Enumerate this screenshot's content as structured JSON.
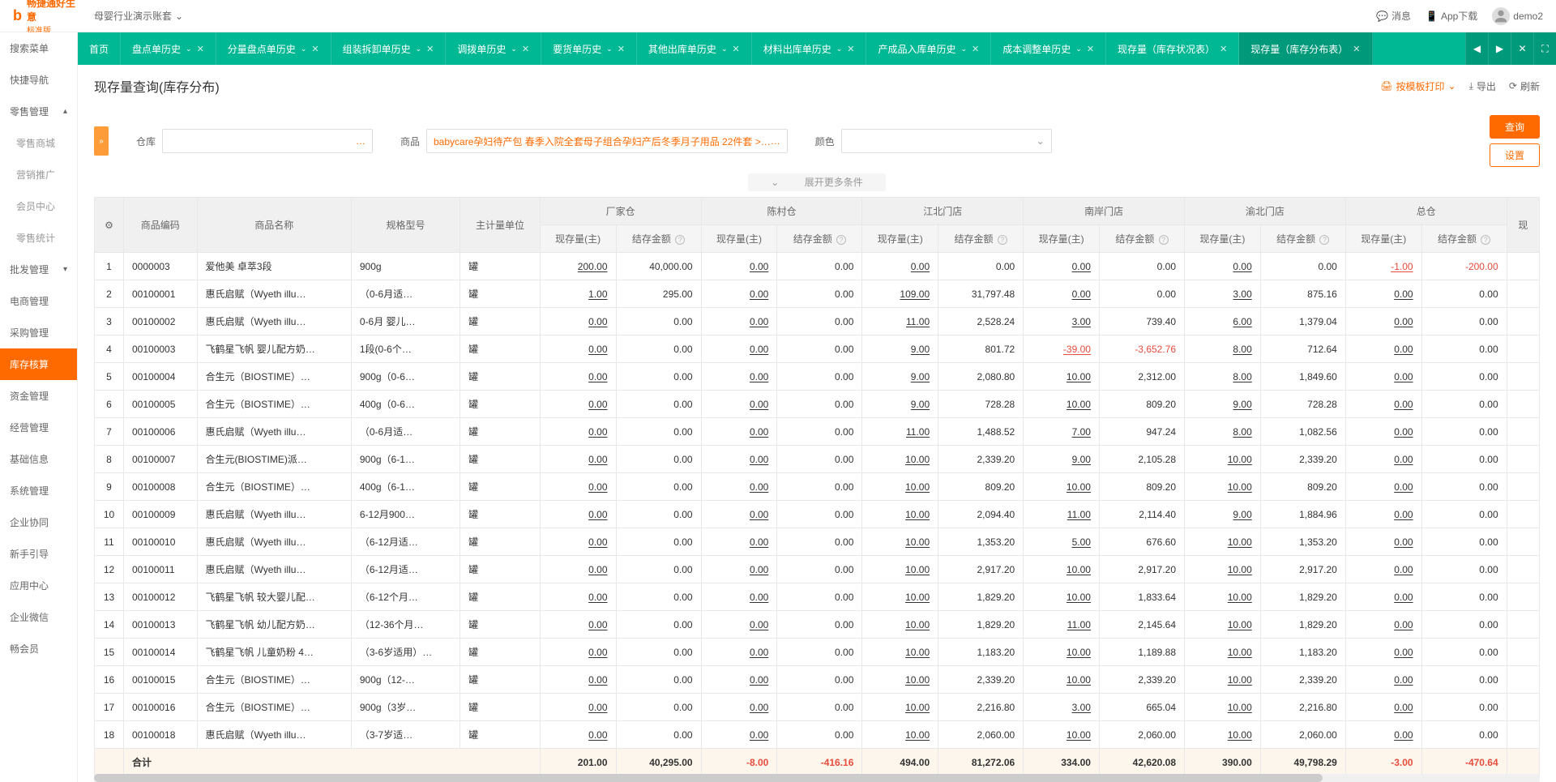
{
  "top": {
    "logoText": "畅捷通好生意",
    "logoSub": "标准版",
    "account": "母婴行业演示账套",
    "msg": "消息",
    "download": "App下载",
    "user": "demo2"
  },
  "sidebar": {
    "search": "搜索菜单",
    "quick": "快捷导航",
    "groups": [
      {
        "label": "零售管理",
        "expanded": true,
        "children": [
          "零售商城",
          "营销推广",
          "会员中心",
          "零售统计"
        ]
      },
      {
        "label": "批发管理",
        "expanded": false
      },
      {
        "label": "电商管理"
      },
      {
        "label": "采购管理"
      },
      {
        "label": "库存核算",
        "active": true
      },
      {
        "label": "资金管理"
      },
      {
        "label": "经营管理"
      },
      {
        "label": "基础信息"
      },
      {
        "label": "系统管理"
      },
      {
        "label": "企业协同"
      },
      {
        "label": "新手引导"
      },
      {
        "label": "应用中心"
      },
      {
        "label": "企业微信"
      },
      {
        "label": "畅会员"
      }
    ]
  },
  "tabs": [
    {
      "label": "首页",
      "closable": false
    },
    {
      "label": "盘点单历史",
      "closable": true,
      "caret": true
    },
    {
      "label": "分量盘点单历史",
      "closable": true,
      "caret": true
    },
    {
      "label": "组装拆卸单历史",
      "closable": true,
      "caret": true
    },
    {
      "label": "调拨单历史",
      "closable": true,
      "caret": true
    },
    {
      "label": "要货单历史",
      "closable": true,
      "caret": true
    },
    {
      "label": "其他出库单历史",
      "closable": true,
      "caret": true
    },
    {
      "label": "材料出库单历史",
      "closable": true,
      "caret": true
    },
    {
      "label": "产成品入库单历史",
      "closable": true,
      "caret": true
    },
    {
      "label": "成本调整单历史",
      "closable": true,
      "caret": true
    },
    {
      "label": "现存量（库存状况表）",
      "closable": true
    },
    {
      "label": "现存量（库存分布表）",
      "closable": true,
      "active": true
    }
  ],
  "page": {
    "title": "现存量查询(库存分布)",
    "print": "按模板打印",
    "export": "导出",
    "refresh": "刷新",
    "expandMore": "展开更多条件",
    "queryBtn": "查询",
    "settingBtn": "设置",
    "filters": {
      "warehouse": {
        "label": "仓库",
        "value": ""
      },
      "product": {
        "label": "商品",
        "value": "babycare孕妇待产包 春季入院全套母子组合孕妇产后冬季月子用品 22件套 >…"
      },
      "color": {
        "label": "颜色",
        "value": ""
      }
    }
  },
  "table": {
    "warehouses": [
      "厂家仓",
      "陈村仓",
      "江北门店",
      "南岸门店",
      "渝北门店",
      "总仓"
    ],
    "cols": {
      "code": "商品编码",
      "name": "商品名称",
      "spec": "规格型号",
      "unit": "主计量单位",
      "qty": "现存量(主)",
      "amt": "结存金额",
      "extra": "现"
    },
    "totalLabel": "合计",
    "rows": [
      {
        "n": 1,
        "code": "0000003",
        "name": "爱他美 卓萃3段",
        "spec": "900g",
        "unit": "罐",
        "v": [
          [
            "200.00",
            "40,000.00"
          ],
          [
            "0.00",
            "0.00"
          ],
          [
            "0.00",
            "0.00"
          ],
          [
            "0.00",
            "0.00"
          ],
          [
            "0.00",
            "0.00"
          ],
          [
            "-1.00",
            "-200.00"
          ]
        ],
        "redIdx": [
          5
        ]
      },
      {
        "n": 2,
        "code": "00100001",
        "name": "惠氏启赋（Wyeth illu…",
        "spec": "（0-6月适…",
        "unit": "罐",
        "v": [
          [
            "1.00",
            "295.00"
          ],
          [
            "0.00",
            "0.00"
          ],
          [
            "109.00",
            "31,797.48"
          ],
          [
            "0.00",
            "0.00"
          ],
          [
            "3.00",
            "875.16"
          ],
          [
            "0.00",
            "0.00"
          ]
        ]
      },
      {
        "n": 3,
        "code": "00100002",
        "name": "惠氏启赋（Wyeth illu…",
        "spec": "0-6月 婴儿…",
        "unit": "罐",
        "v": [
          [
            "0.00",
            "0.00"
          ],
          [
            "0.00",
            "0.00"
          ],
          [
            "11.00",
            "2,528.24"
          ],
          [
            "3.00",
            "739.40"
          ],
          [
            "6.00",
            "1,379.04"
          ],
          [
            "0.00",
            "0.00"
          ]
        ]
      },
      {
        "n": 4,
        "code": "00100003",
        "name": "飞鹤星飞帆 婴儿配方奶…",
        "spec": "1段(0-6个…",
        "unit": "罐",
        "v": [
          [
            "0.00",
            "0.00"
          ],
          [
            "0.00",
            "0.00"
          ],
          [
            "9.00",
            "801.72"
          ],
          [
            "-39.00",
            "-3,652.76"
          ],
          [
            "8.00",
            "712.64"
          ],
          [
            "0.00",
            "0.00"
          ]
        ],
        "redIdx": [
          3
        ]
      },
      {
        "n": 5,
        "code": "00100004",
        "name": "合生元（BIOSTIME）…",
        "spec": "900g（0-6…",
        "unit": "罐",
        "v": [
          [
            "0.00",
            "0.00"
          ],
          [
            "0.00",
            "0.00"
          ],
          [
            "9.00",
            "2,080.80"
          ],
          [
            "10.00",
            "2,312.00"
          ],
          [
            "8.00",
            "1,849.60"
          ],
          [
            "0.00",
            "0.00"
          ]
        ]
      },
      {
        "n": 6,
        "code": "00100005",
        "name": "合生元（BIOSTIME）…",
        "spec": "400g（0-6…",
        "unit": "罐",
        "v": [
          [
            "0.00",
            "0.00"
          ],
          [
            "0.00",
            "0.00"
          ],
          [
            "9.00",
            "728.28"
          ],
          [
            "10.00",
            "809.20"
          ],
          [
            "9.00",
            "728.28"
          ],
          [
            "0.00",
            "0.00"
          ]
        ]
      },
      {
        "n": 7,
        "code": "00100006",
        "name": "惠氏启赋（Wyeth illu…",
        "spec": "（0-6月适…",
        "unit": "罐",
        "v": [
          [
            "0.00",
            "0.00"
          ],
          [
            "0.00",
            "0.00"
          ],
          [
            "11.00",
            "1,488.52"
          ],
          [
            "7.00",
            "947.24"
          ],
          [
            "8.00",
            "1,082.56"
          ],
          [
            "0.00",
            "0.00"
          ]
        ]
      },
      {
        "n": 8,
        "code": "00100007",
        "name": "合生元(BIOSTIME)派…",
        "spec": "900g（6-1…",
        "unit": "罐",
        "v": [
          [
            "0.00",
            "0.00"
          ],
          [
            "0.00",
            "0.00"
          ],
          [
            "10.00",
            "2,339.20"
          ],
          [
            "9.00",
            "2,105.28"
          ],
          [
            "10.00",
            "2,339.20"
          ],
          [
            "0.00",
            "0.00"
          ]
        ]
      },
      {
        "n": 9,
        "code": "00100008",
        "name": "合生元（BIOSTIME）…",
        "spec": "400g（6-1…",
        "unit": "罐",
        "v": [
          [
            "0.00",
            "0.00"
          ],
          [
            "0.00",
            "0.00"
          ],
          [
            "10.00",
            "809.20"
          ],
          [
            "10.00",
            "809.20"
          ],
          [
            "10.00",
            "809.20"
          ],
          [
            "0.00",
            "0.00"
          ]
        ]
      },
      {
        "n": 10,
        "code": "00100009",
        "name": "惠氏启赋（Wyeth illu…",
        "spec": "6-12月900…",
        "unit": "罐",
        "v": [
          [
            "0.00",
            "0.00"
          ],
          [
            "0.00",
            "0.00"
          ],
          [
            "10.00",
            "2,094.40"
          ],
          [
            "11.00",
            "2,114.40"
          ],
          [
            "9.00",
            "1,884.96"
          ],
          [
            "0.00",
            "0.00"
          ]
        ]
      },
      {
        "n": 11,
        "code": "00100010",
        "name": "惠氏启赋（Wyeth illu…",
        "spec": "（6-12月适…",
        "unit": "罐",
        "v": [
          [
            "0.00",
            "0.00"
          ],
          [
            "0.00",
            "0.00"
          ],
          [
            "10.00",
            "1,353.20"
          ],
          [
            "5.00",
            "676.60"
          ],
          [
            "10.00",
            "1,353.20"
          ],
          [
            "0.00",
            "0.00"
          ]
        ]
      },
      {
        "n": 12,
        "code": "00100011",
        "name": "惠氏启赋（Wyeth illu…",
        "spec": "（6-12月适…",
        "unit": "罐",
        "v": [
          [
            "0.00",
            "0.00"
          ],
          [
            "0.00",
            "0.00"
          ],
          [
            "10.00",
            "2,917.20"
          ],
          [
            "10.00",
            "2,917.20"
          ],
          [
            "10.00",
            "2,917.20"
          ],
          [
            "0.00",
            "0.00"
          ]
        ]
      },
      {
        "n": 13,
        "code": "00100012",
        "name": "飞鹤星飞帆 较大婴儿配…",
        "spec": "（6-12个月…",
        "unit": "罐",
        "v": [
          [
            "0.00",
            "0.00"
          ],
          [
            "0.00",
            "0.00"
          ],
          [
            "10.00",
            "1,829.20"
          ],
          [
            "10.00",
            "1,833.64"
          ],
          [
            "10.00",
            "1,829.20"
          ],
          [
            "0.00",
            "0.00"
          ]
        ]
      },
      {
        "n": 14,
        "code": "00100013",
        "name": "飞鹤星飞帆 幼儿配方奶…",
        "spec": "（12-36个月…",
        "unit": "罐",
        "v": [
          [
            "0.00",
            "0.00"
          ],
          [
            "0.00",
            "0.00"
          ],
          [
            "10.00",
            "1,829.20"
          ],
          [
            "11.00",
            "2,145.64"
          ],
          [
            "10.00",
            "1,829.20"
          ],
          [
            "0.00",
            "0.00"
          ]
        ]
      },
      {
        "n": 15,
        "code": "00100014",
        "name": "飞鹤星飞帆 儿童奶粉 4…",
        "spec": "（3-6岁适用）…",
        "unit": "罐",
        "v": [
          [
            "0.00",
            "0.00"
          ],
          [
            "0.00",
            "0.00"
          ],
          [
            "10.00",
            "1,183.20"
          ],
          [
            "10.00",
            "1,189.88"
          ],
          [
            "10.00",
            "1,183.20"
          ],
          [
            "0.00",
            "0.00"
          ]
        ]
      },
      {
        "n": 16,
        "code": "00100015",
        "name": "合生元（BIOSTIME）…",
        "spec": "900g（12-…",
        "unit": "罐",
        "v": [
          [
            "0.00",
            "0.00"
          ],
          [
            "0.00",
            "0.00"
          ],
          [
            "10.00",
            "2,339.20"
          ],
          [
            "10.00",
            "2,339.20"
          ],
          [
            "10.00",
            "2,339.20"
          ],
          [
            "0.00",
            "0.00"
          ]
        ]
      },
      {
        "n": 17,
        "code": "00100016",
        "name": "合生元（BIOSTIME）…",
        "spec": "900g（3岁…",
        "unit": "罐",
        "v": [
          [
            "0.00",
            "0.00"
          ],
          [
            "0.00",
            "0.00"
          ],
          [
            "10.00",
            "2,216.80"
          ],
          [
            "3.00",
            "665.04"
          ],
          [
            "10.00",
            "2,216.80"
          ],
          [
            "0.00",
            "0.00"
          ]
        ]
      },
      {
        "n": 18,
        "code": "00100018",
        "name": "惠氏启赋（Wyeth illu…",
        "spec": "（3-7岁适…",
        "unit": "罐",
        "v": [
          [
            "0.00",
            "0.00"
          ],
          [
            "0.00",
            "0.00"
          ],
          [
            "10.00",
            "2,060.00"
          ],
          [
            "10.00",
            "2,060.00"
          ],
          [
            "10.00",
            "2,060.00"
          ],
          [
            "0.00",
            "0.00"
          ]
        ]
      }
    ],
    "totals": [
      "201.00",
      "40,295.00",
      "-8.00",
      "-416.16",
      "494.00",
      "81,272.06",
      "334.00",
      "42,620.08",
      "390.00",
      "49,798.29",
      "-3.00",
      "-470.64"
    ],
    "totalsRed": [
      2,
      3,
      10,
      11
    ]
  }
}
